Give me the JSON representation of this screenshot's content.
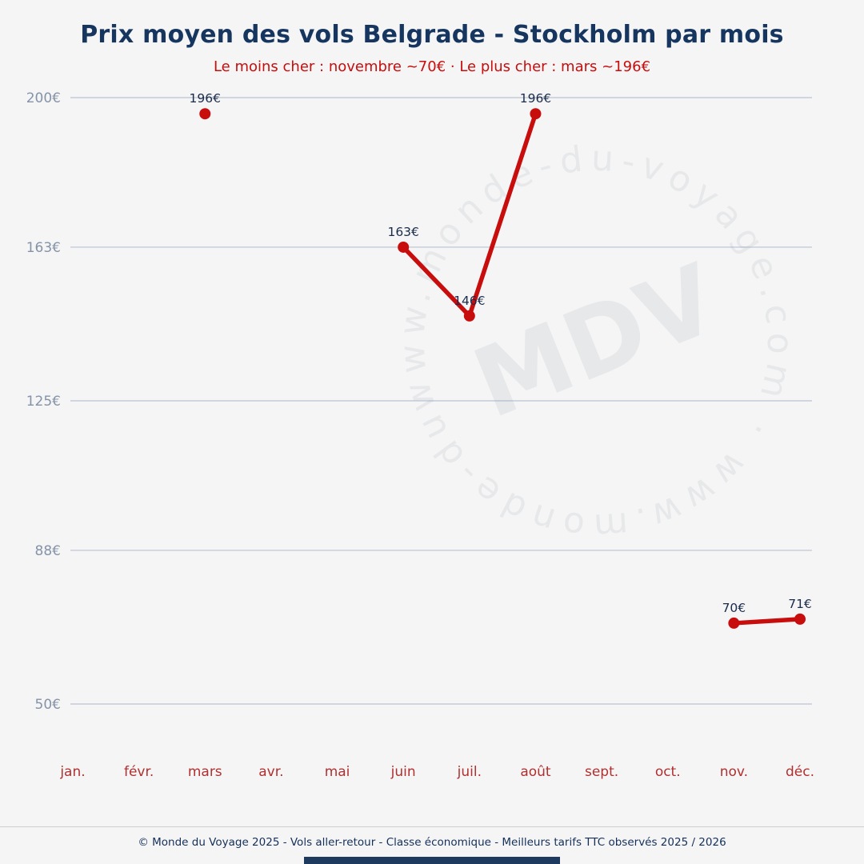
{
  "header": {
    "title": "Prix moyen des vols Belgrade - Stockholm par mois",
    "subtitle": "Le moins cher : novembre ~70€ · Le plus cher : mars ~196€"
  },
  "watermark": {
    "ring_text": "www.monde-du-voyage.com",
    "center_text": "MDV"
  },
  "footer": {
    "text": "© Monde du Voyage 2025 - Vols aller-retour - Classe économique - Meilleurs tarifs TTC observés 2025 / 2026"
  },
  "colors": {
    "accent_red": "#c80d0d",
    "navy": "#16365f",
    "grid": "#c3ccd9",
    "tick_label": "#8593a8",
    "month_label": "#b03030",
    "point_label": "#1b2b4a",
    "watermark": "#8a949e"
  },
  "chart_data": {
    "type": "line",
    "title": "Prix moyen des vols Belgrade - Stockholm par mois",
    "categories": [
      "jan.",
      "févr.",
      "mars",
      "avr.",
      "mai",
      "juin",
      "juil.",
      "août",
      "sept.",
      "oct.",
      "nov.",
      "déc."
    ],
    "values": [
      null,
      null,
      196,
      null,
      null,
      163,
      146,
      196,
      null,
      null,
      70,
      71
    ],
    "unit": "€",
    "yticks": [
      200,
      163,
      125,
      88,
      50
    ],
    "ylim": [
      50,
      200
    ],
    "grid": true,
    "legend": false,
    "annotations": [
      "196€",
      "163€",
      "146€",
      "196€",
      "70€",
      "71€"
    ]
  }
}
